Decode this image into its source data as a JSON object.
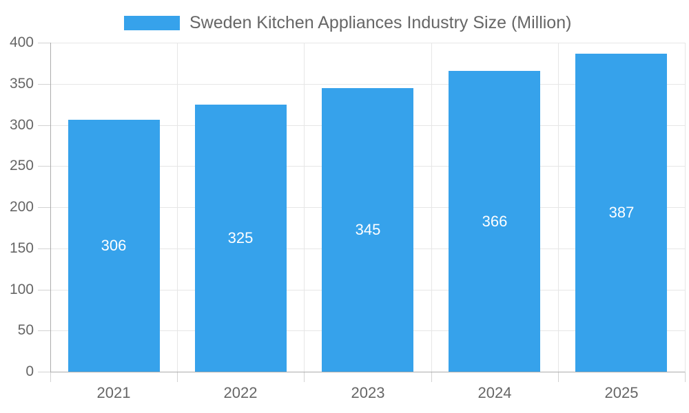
{
  "legend": {
    "label": "Sweden Kitchen Appliances Industry Size (Million)"
  },
  "chart_data": {
    "type": "bar",
    "title": "Sweden Kitchen Appliances Industry Size (Million)",
    "categories": [
      "2021",
      "2022",
      "2023",
      "2024",
      "2025"
    ],
    "values": [
      306,
      325,
      345,
      366,
      387
    ],
    "series": [
      {
        "name": "Sweden Kitchen Appliances Industry Size (Million)",
        "values": [
          306,
          325,
          345,
          366,
          387
        ]
      }
    ],
    "xlabel": "",
    "ylabel": "",
    "ylim": [
      0,
      400
    ],
    "ytick_step": 50,
    "yticks": [
      "0",
      "50",
      "100",
      "150",
      "200",
      "250",
      "300",
      "350",
      "400"
    ],
    "grid": true,
    "legend_position": "top",
    "value_labels": "centered-white-inside-bars"
  },
  "colors": {
    "bar": "#36A2EB",
    "grid": "#E6E6E6",
    "axis": "#ABABAB",
    "tick": "#D2D2D2",
    "text": "#666666",
    "value_text": "#FFFFFF",
    "background": "#FFFFFF"
  }
}
